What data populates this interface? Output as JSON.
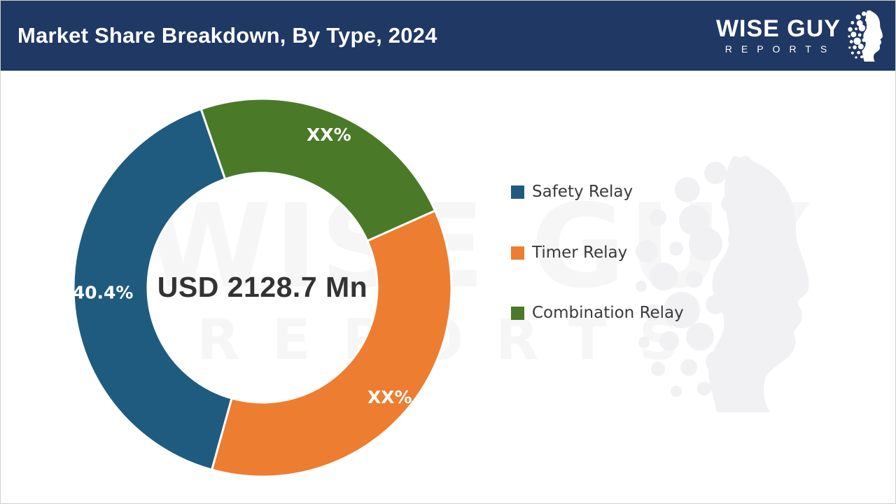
{
  "page": {
    "background": "#ffffff",
    "border_color": "#cfcfcf"
  },
  "header": {
    "bg_color": "#1f3864",
    "title": "Market Share Breakdown, By Type, 2024",
    "logo": {
      "line1": "WISE GUY",
      "line2": "REPORTS"
    }
  },
  "chart_data": {
    "type": "pie",
    "subtype": "donut",
    "title": "Market Share Breakdown, By Type, 2024",
    "center_label": "USD 2128.7 Mn",
    "start_angle_deg": -19,
    "slices": [
      {
        "name": "Combination Relay",
        "label": "XX%",
        "value_pct": 23.6,
        "color": "#4a7a28",
        "label_radius": 238
      },
      {
        "name": "Timer Relay",
        "label": "XX%",
        "value_pct": 36.0,
        "color": "#ed7d31",
        "label_radius": 240
      },
      {
        "name": "Safety Relay",
        "label": "40.4%",
        "value_pct": 40.4,
        "color": "#1f5b7e",
        "label_radius": 228
      }
    ],
    "legend": {
      "position": "right",
      "items": [
        {
          "label": "Safety Relay",
          "color": "#1f5b7e"
        },
        {
          "label": "Timer Relay",
          "color": "#ed7d31"
        },
        {
          "label": "Combination Relay",
          "color": "#4a7a28"
        }
      ]
    }
  },
  "watermark": {
    "line1": "WISE GUY",
    "line2": "REPORTS"
  }
}
